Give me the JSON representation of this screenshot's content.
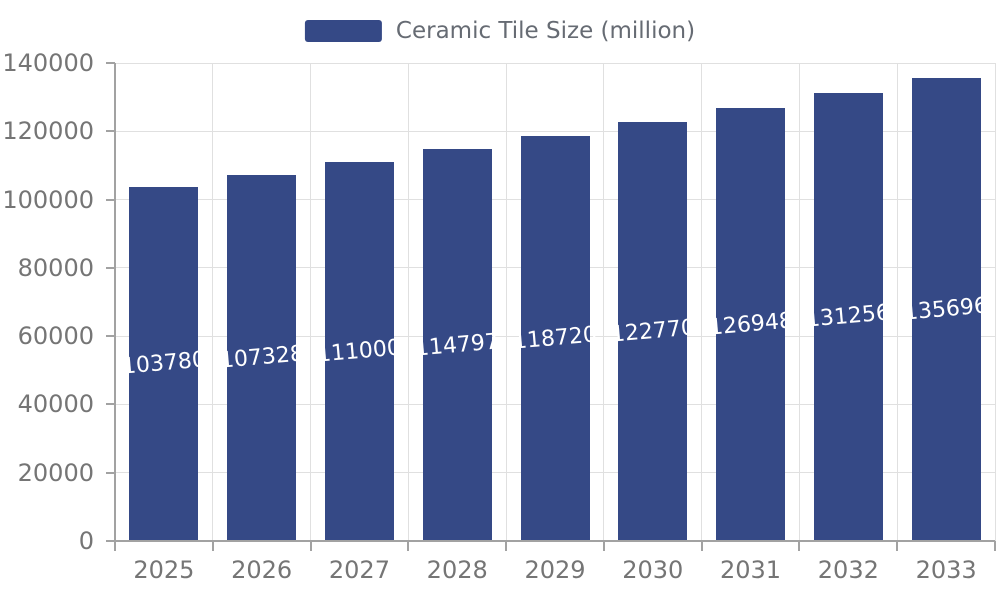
{
  "legend": {
    "label": "Ceramic Tile Size (million)"
  },
  "chart_data": {
    "type": "bar",
    "title": "Ceramic Tile Size (million)",
    "categories": [
      "2025",
      "2026",
      "2027",
      "2028",
      "2029",
      "2030",
      "2031",
      "2032",
      "2033"
    ],
    "values": [
      103780,
      107328,
      111000,
      114797,
      118720,
      122770,
      126948,
      131256,
      135696
    ],
    "xlabel": "",
    "ylabel": "",
    "ylim": [
      0,
      140000
    ],
    "yticks": [
      0,
      20000,
      40000,
      60000,
      80000,
      100000,
      120000,
      140000
    ],
    "grid": true,
    "legend_position": "top-center",
    "bar_labels_inside": true,
    "colors": {
      "bar": "#354986",
      "bar_label": "#ffffff",
      "grid_line": "#e0e0e0",
      "axis_line": "#a2a2a2",
      "axis_text": "#757575",
      "legend_text": "#666b73"
    }
  }
}
